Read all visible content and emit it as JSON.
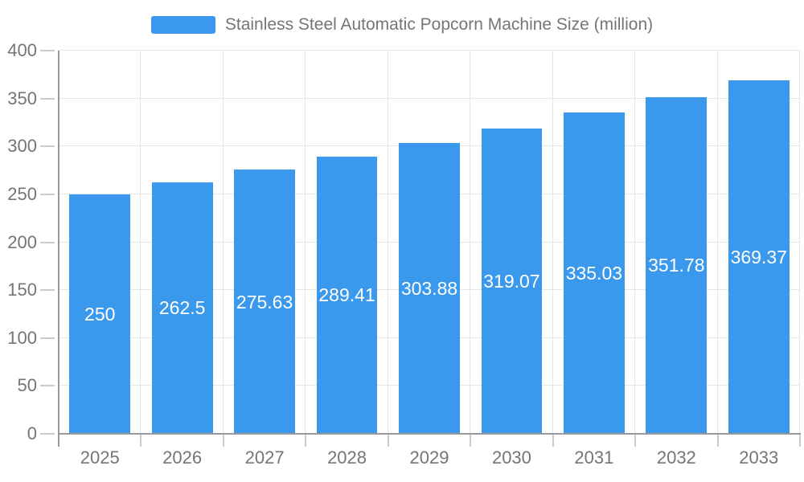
{
  "chart_data": {
    "type": "bar",
    "title": "Stainless Steel Automatic Popcorn Machine Size (million)",
    "categories": [
      "2025",
      "2026",
      "2027",
      "2028",
      "2029",
      "2030",
      "2031",
      "2032",
      "2033"
    ],
    "values": [
      250,
      262.5,
      275.63,
      289.41,
      303.88,
      319.07,
      335.03,
      351.78,
      369.37
    ],
    "value_labels": [
      "250",
      "262.5",
      "275.63",
      "289.41",
      "303.88",
      "319.07",
      "335.03",
      "351.78",
      "369.37"
    ],
    "xlabel": "",
    "ylabel": "",
    "ylim": [
      0,
      400
    ],
    "yticks": [
      0,
      50,
      100,
      150,
      200,
      250,
      300,
      350,
      400
    ],
    "grid": true,
    "legend_position": "top",
    "colors": {
      "bar": "#3a99ec",
      "bar_label": "#ffffff",
      "axis_line": "#999999",
      "tick": "#cccccc",
      "grid_line": "#e6e6e6",
      "axis_text": "#757575",
      "legend_text": "#757575"
    }
  }
}
